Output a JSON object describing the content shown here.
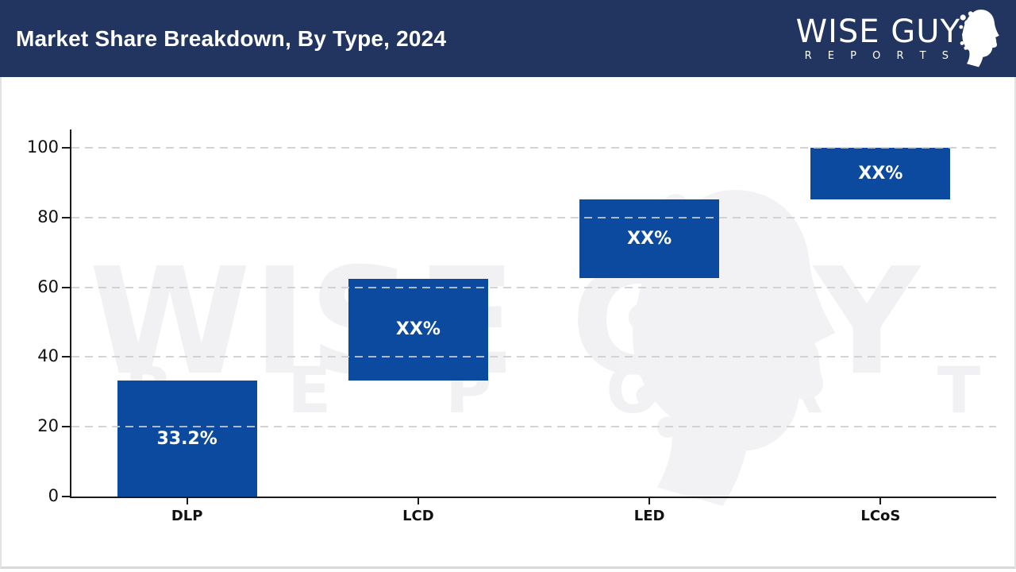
{
  "header": {
    "title": "Market Share Breakdown, By Type, 2024",
    "logo": {
      "line1": "WISE GUY",
      "line2": "R E P O R T S"
    }
  },
  "watermark": {
    "line1": "WISE GUY",
    "line2": "R E P O R T S"
  },
  "chart_data": {
    "type": "bar",
    "subtype": "waterfall",
    "title": "Market Share Breakdown, By Type, 2024",
    "categories": [
      "DLP",
      "LCD",
      "LED",
      "LCoS"
    ],
    "segments": [
      {
        "category": "DLP",
        "start": 0,
        "end": 33.2,
        "label": "33.2%"
      },
      {
        "category": "LCD",
        "start": 33.2,
        "end": 62.5,
        "label": "XX%"
      },
      {
        "category": "LED",
        "start": 62.7,
        "end": 85.2,
        "label": "XX%"
      },
      {
        "category": "LCoS",
        "start": 85.3,
        "end": 100,
        "label": "XX%"
      }
    ],
    "yticks": [
      0,
      20,
      40,
      60,
      80,
      100
    ],
    "ylim": [
      0,
      105
    ],
    "xlabel": "",
    "ylabel": "",
    "grid": "dashed horizontal, drawn over bars",
    "legend": "none",
    "bar_color": "#0b4a9f",
    "bar_label_color": "#ffffff"
  },
  "colors": {
    "header_bg": "#213560",
    "bar": "#0b4a9f",
    "grid": "#d8d8d8",
    "axis": "#1a1a1a",
    "watermark": "#f1f1f3",
    "frame_border": "#d9d9d9"
  }
}
